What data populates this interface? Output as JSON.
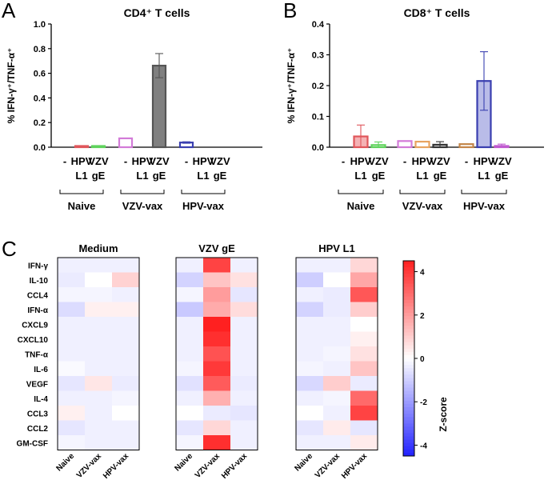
{
  "panels": {
    "A": {
      "letter": "A",
      "title": "CD4⁺ T cells"
    },
    "B": {
      "letter": "B",
      "title": "CD8⁺ T cells"
    },
    "C": {
      "letter": "C"
    }
  },
  "colors": {
    "naive_medium": "#a0a0a0",
    "naive_hpv": "#e0565b",
    "naive_vzv": "#5fd35c",
    "vzvvax_medium": "#d37bd8",
    "vzvvax_hpv": "#e8a460",
    "vzvvax_vzv": "#555555",
    "hpvvax_medium": "#c4864a",
    "hpvvax_hpv": "#3a3fb0",
    "hpvvax_vzv": "#c05ad0",
    "gray_fill": "#808080",
    "heat_low": "#2121ff",
    "heat_mid": "#ffffff",
    "heat_high": "#ff2020"
  },
  "chart_data": [
    {
      "panel": "A",
      "type": "bar",
      "title": "CD4⁺ T cells",
      "ylabel": "% IFN-γ⁺/TNF-α⁺",
      "ylim": [
        0,
        1.0
      ],
      "yticks": [
        "0.0",
        "0.2",
        "0.4",
        "0.6",
        "0.8",
        "1.0"
      ],
      "tick_labels": [
        "-",
        "HPV\nL1",
        "VZV\ngE",
        "-",
        "HPV\nL1",
        "VZV\ngE",
        "-",
        "HPV\nL1",
        "VZV\ngE"
      ],
      "groups": [
        "Naive",
        "VZV-vax",
        "HPV-vax"
      ],
      "values": [
        0.0,
        0.005,
        0.005,
        0.072,
        0.0,
        0.662,
        0.038,
        0.0,
        0.0
      ],
      "errors": [
        0.0,
        0.0,
        0.0,
        0.0,
        0.0,
        0.098,
        0.006,
        0.0,
        0.0
      ],
      "bar_colors": [
        "#a0a0a0",
        "#e0565b",
        "#5fd35c",
        "#d37bd8",
        "#e8a460",
        "#555555",
        "#3a3fb0",
        "#3a3fb0",
        "#c05ad0"
      ]
    },
    {
      "panel": "B",
      "type": "bar",
      "title": "CD8⁺ T cells",
      "ylabel": "% IFN-γ⁺/TNF-α⁺",
      "ylim": [
        0,
        0.4
      ],
      "yticks": [
        "0.0",
        "0.1",
        "0.2",
        "0.3",
        "0.4"
      ],
      "tick_labels": [
        "-",
        "HPV\nL1",
        "VZV\ngE",
        "-",
        "HPV\nL1",
        "VZV\ngE",
        "-",
        "HPV\nL1",
        "VZV\ngE"
      ],
      "groups": [
        "Naive",
        "VZV-vax",
        "HPV-vax"
      ],
      "values": [
        0.0,
        0.035,
        0.007,
        0.02,
        0.018,
        0.008,
        0.01,
        0.215,
        0.004
      ],
      "errors": [
        0.0,
        0.037,
        0.01,
        0.0,
        0.0,
        0.01,
        0.0,
        0.095,
        0.006
      ],
      "bar_colors": [
        "#a0a0a0",
        "#e0565b",
        "#5fd35c",
        "#d37bd8",
        "#e8a460",
        "#333333",
        "#c4864a",
        "#3a3fb0",
        "#c05ad0"
      ]
    },
    {
      "panel": "C",
      "type": "heatmap",
      "rows": [
        "IFN-γ",
        "IL-10",
        "CCL4",
        "IFN-α",
        "CXCL9",
        "CXCL10",
        "TNF-α",
        "IL-6",
        "VEGF",
        "IL-4",
        "CCL3",
        "CCL2",
        "GM-CSF"
      ],
      "columns": [
        "Naive",
        "VZV-vax",
        "HPV-vax"
      ],
      "colorbar_label": "Z-score",
      "colorbar_range": [
        -4.5,
        4.5
      ],
      "colorbar_ticks": [
        "4",
        "2",
        "0",
        "-2",
        "-4"
      ],
      "maps": [
        {
          "title": "Medium",
          "values": [
            [
              -0.3,
              -0.3,
              -0.3
            ],
            [
              -0.4,
              0.0,
              0.9
            ],
            [
              -0.2,
              -0.2,
              -0.3
            ],
            [
              -0.7,
              0.3,
              0.3
            ],
            [
              -0.3,
              -0.3,
              -0.3
            ],
            [
              -0.3,
              -0.3,
              -0.3
            ],
            [
              -0.3,
              -0.3,
              -0.3
            ],
            [
              -0.1,
              -0.3,
              -0.3
            ],
            [
              -0.5,
              0.5,
              -0.4
            ],
            [
              -0.3,
              -0.3,
              -0.2
            ],
            [
              0.3,
              -0.3,
              0.0
            ],
            [
              -0.5,
              -0.3,
              -0.3
            ],
            [
              -0.2,
              -0.3,
              -0.3
            ]
          ]
        },
        {
          "title": "VZV gE",
          "values": [
            [
              -0.3,
              3.8,
              -0.3
            ],
            [
              -0.9,
              1.2,
              0.6
            ],
            [
              -0.2,
              2.0,
              -0.5
            ],
            [
              -1.1,
              1.7,
              0.7
            ],
            [
              -0.3,
              4.5,
              -0.3
            ],
            [
              -0.3,
              4.2,
              -0.3
            ],
            [
              -0.3,
              3.5,
              -0.3
            ],
            [
              -0.2,
              4.0,
              -0.3
            ],
            [
              -0.6,
              3.3,
              -0.4
            ],
            [
              -0.3,
              1.6,
              -0.3
            ],
            [
              0.0,
              -0.4,
              -0.5
            ],
            [
              -0.5,
              0.8,
              -0.3
            ],
            [
              -0.2,
              4.2,
              -0.3
            ]
          ]
        },
        {
          "title": "HPV L1",
          "values": [
            [
              -0.3,
              -0.3,
              0.8
            ],
            [
              -1.0,
              0.0,
              1.8
            ],
            [
              -0.3,
              -0.4,
              3.4
            ],
            [
              -0.9,
              -0.4,
              1.0
            ],
            [
              -0.3,
              -0.3,
              0.0
            ],
            [
              -0.3,
              -0.3,
              0.3
            ],
            [
              -0.3,
              -0.2,
              0.6
            ],
            [
              -0.2,
              -0.3,
              1.2
            ],
            [
              -0.8,
              1.0,
              -0.4
            ],
            [
              -0.3,
              -0.2,
              3.0
            ],
            [
              0.0,
              -0.3,
              3.8
            ],
            [
              -0.5,
              0.4,
              -0.5
            ],
            [
              -0.3,
              -0.3,
              0.4
            ]
          ]
        }
      ]
    }
  ]
}
